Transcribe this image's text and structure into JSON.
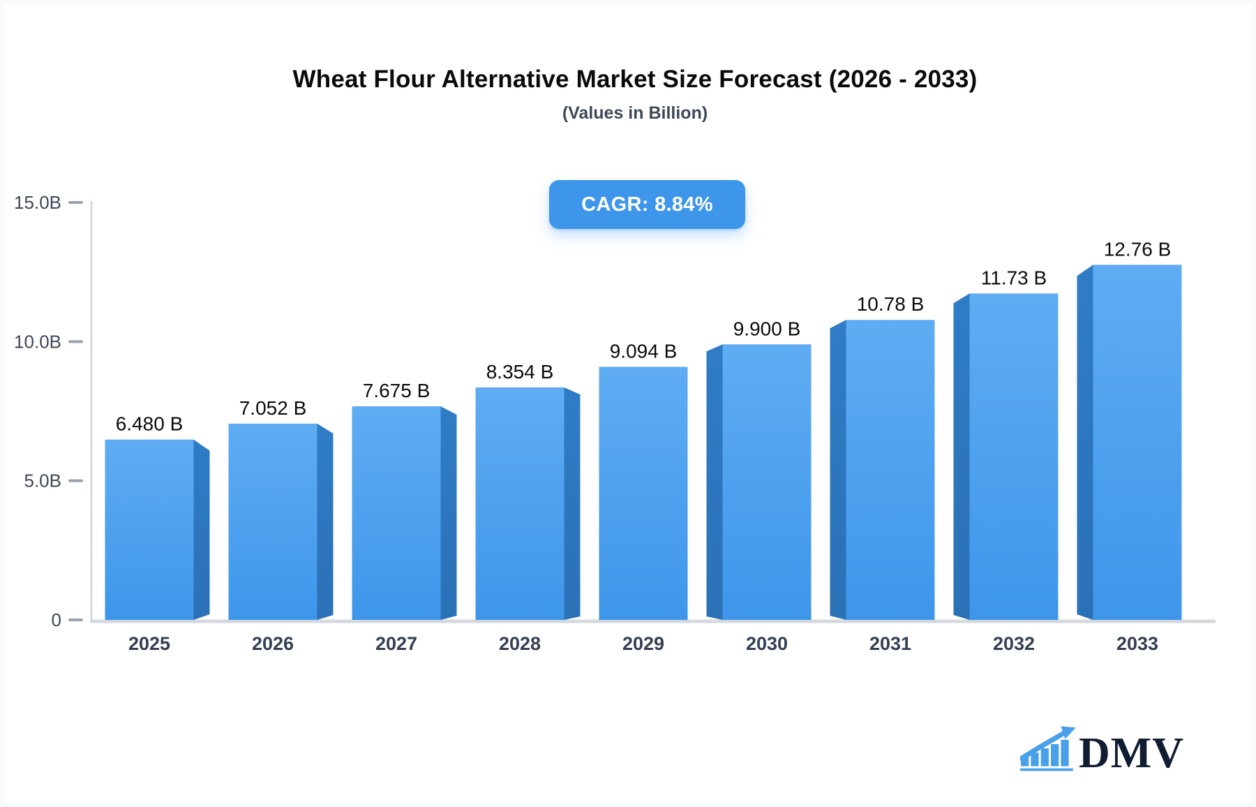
{
  "header": {
    "title": "Wheat Flour Alternative Market Size Forecast (2026 - 2033)",
    "subtitle": "(Values in Billion)"
  },
  "badge": {
    "label": "CAGR: 8.84%"
  },
  "chart_data": {
    "type": "bar",
    "title": "Wheat Flour Alternative Market Size Forecast (2026 - 2033)",
    "subtitle": "(Values in Billion)",
    "cagr_percent": 8.84,
    "categories": [
      "2025",
      "2026",
      "2027",
      "2028",
      "2029",
      "2030",
      "2031",
      "2032",
      "2033"
    ],
    "values": [
      6.48,
      7.052,
      7.675,
      8.354,
      9.094,
      9.9,
      10.78,
      11.73,
      12.76
    ],
    "value_labels": [
      "6.480 B",
      "7.052 B",
      "7.675 B",
      "8.354 B",
      "9.094 B",
      "9.900 B",
      "10.78 B",
      "11.73 B",
      "12.76 B"
    ],
    "xlabel": "",
    "ylabel": "",
    "ylim": [
      0,
      15
    ],
    "yticks": [
      {
        "value": 0,
        "label": "0"
      },
      {
        "value": 5,
        "label": "5.0B"
      },
      {
        "value": 10,
        "label": "10.0B"
      },
      {
        "value": 15,
        "label": "15.0B"
      }
    ],
    "grid": false,
    "legend": false,
    "bar_style": "3d-perspective",
    "colors": {
      "bar_front_top": "#5facf2",
      "bar_front_bottom": "#3e96ea",
      "bar_side": "#2d76be",
      "axis_line": "#d5d8dd",
      "tick_dash": "#98a1ac",
      "badge_bg": "#3e96ea",
      "badge_text": "#ffffff"
    }
  },
  "logo": {
    "text": "DMV",
    "icon": "growth-bars-arrow-icon",
    "color": "#101c30",
    "icon_color": "#4a9fe9"
  }
}
